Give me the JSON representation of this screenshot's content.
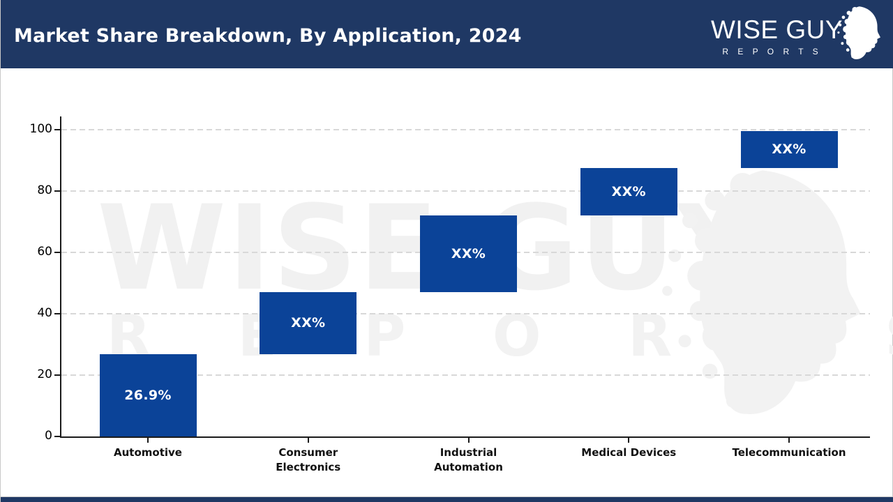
{
  "header": {
    "title": "Market Share Breakdown, By Application, 2024",
    "logo": {
      "wordmark": "WISE GUY",
      "subtext": "R E P O R T S"
    }
  },
  "watermark": {
    "wordmark": "WISE GUY",
    "subtext": "R E P O R T S"
  },
  "colors": {
    "header_bg": "#1f3864",
    "bar": "#0b4398",
    "gridline": "#d8d8d8",
    "axis": "#1a1a1a",
    "bar_label": "#ffffff",
    "watermark": "#f1f1f1"
  },
  "chart_data": {
    "type": "bar",
    "subtype": "waterfall",
    "title": "Market Share Breakdown, By Application, 2024",
    "categories": [
      "Automotive",
      "Consumer\nElectronics",
      "Industrial\nAutomation",
      "Medical Devices",
      "Telecommunication"
    ],
    "series": [
      {
        "name": "Market share (%)",
        "starts": [
          0,
          26.9,
          47.1,
          72.0,
          87.6
        ],
        "ends": [
          26.9,
          47.1,
          72.0,
          87.6,
          99.5
        ],
        "bar_labels": [
          "26.9%",
          "XX%",
          "XX%",
          "XX%",
          "XX%"
        ]
      }
    ],
    "xlabel": "",
    "ylabel": "",
    "ylim": [
      0,
      105
    ],
    "yticks": [
      0,
      20,
      40,
      60,
      80,
      100
    ],
    "grid": "horizontal dashed",
    "legend": "none"
  }
}
